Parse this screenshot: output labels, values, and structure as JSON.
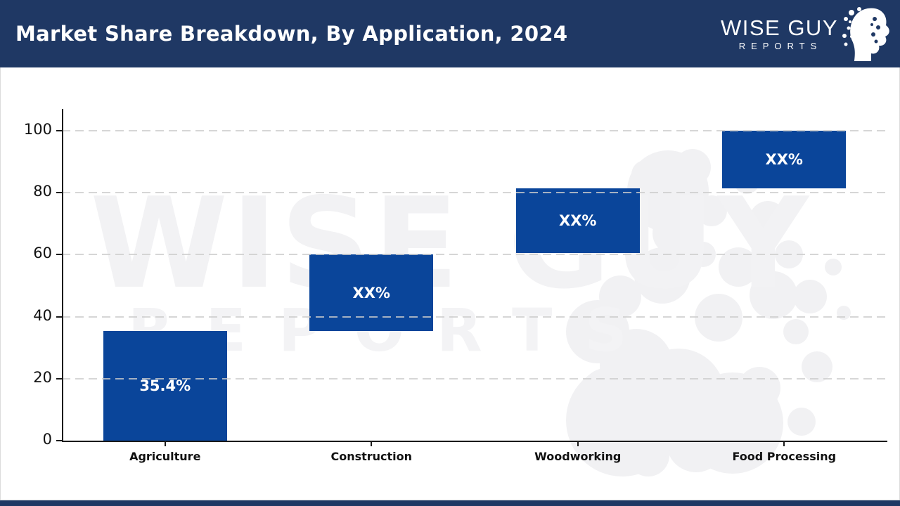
{
  "header": {
    "title": "Market Share Breakdown, By Application, 2024",
    "bg_color": "#1f3864",
    "logo": {
      "line1": "WISE GUY",
      "line2": "REPORTS"
    }
  },
  "watermark": {
    "line1": "WISE GUY",
    "line2": "REPORTS"
  },
  "chart_data": {
    "type": "bar",
    "variant": "waterfall",
    "title": "Market Share Breakdown, By Application, 2024",
    "categories": [
      "Agriculture",
      "Construction",
      "Woodworking",
      "Food Processing"
    ],
    "segments": [
      {
        "category": "Agriculture",
        "start": 0,
        "end": 35.4,
        "label": "35.4%"
      },
      {
        "category": "Construction",
        "start": 35.4,
        "end": 60,
        "label": "XX%"
      },
      {
        "category": "Woodworking",
        "start": 60.5,
        "end": 81.5,
        "label": "XX%"
      },
      {
        "category": "Food Processing",
        "start": 81.5,
        "end": 100,
        "label": "XX%"
      }
    ],
    "ylim": [
      0,
      100
    ],
    "yticks": [
      0,
      20,
      40,
      60,
      80,
      100
    ],
    "grid": {
      "horizontal": true,
      "style": "dashed",
      "color": "#cccccc"
    },
    "legend": "none",
    "bar_color": "#0a459a",
    "bar_label_color": "#ffffff",
    "axis_color": "#1a1a1a"
  }
}
